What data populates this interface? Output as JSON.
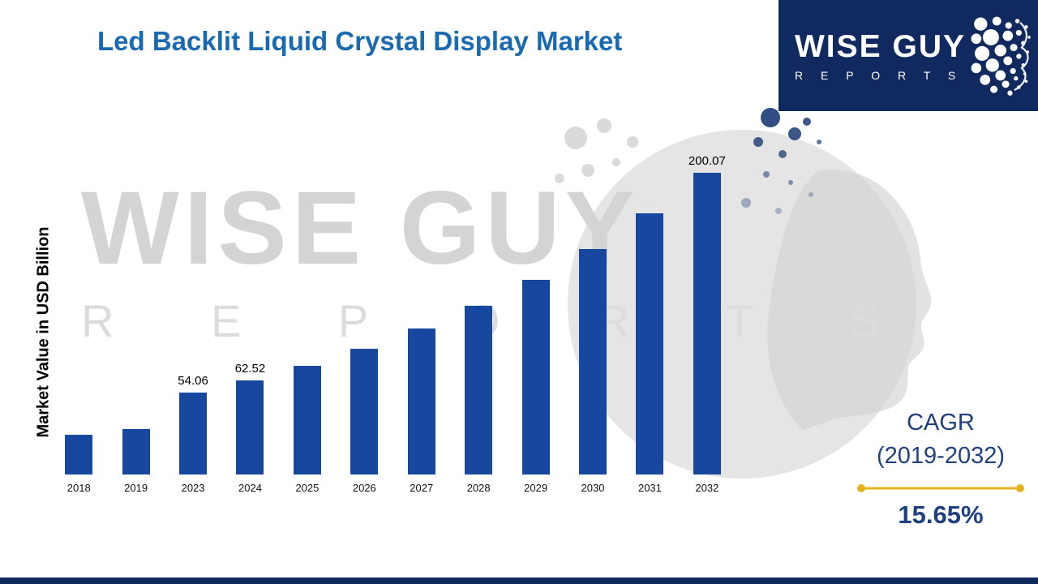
{
  "header": {
    "title": "Led Backlit Liquid Crystal Display Market"
  },
  "logo": {
    "line1": "WISE GUY",
    "line2": "R E P O R T S"
  },
  "watermark": {
    "line1": "WISE GUY",
    "line2": "R E P O R T S"
  },
  "chart_data": {
    "type": "bar",
    "title": "Led Backlit Liquid Crystal Display Market",
    "ylabel": "Market Value in USD Billion",
    "xlabel": "",
    "categories": [
      "2018",
      "2019",
      "2023",
      "2024",
      "2025",
      "2026",
      "2027",
      "2028",
      "2029",
      "2030",
      "2031",
      "2032"
    ],
    "values": [
      26.1,
      30.2,
      54.06,
      62.52,
      72.3,
      83.6,
      96.7,
      111.8,
      129.3,
      149.6,
      173.0,
      200.07
    ],
    "value_labels": {
      "2023": "54.06",
      "2024": "62.52",
      "2032": "200.07"
    },
    "ylim": [
      0,
      210
    ],
    "grid": false,
    "legend": false,
    "bar_color": "#17479e"
  },
  "cagr": {
    "label": "CAGR",
    "range": "(2019-2032)",
    "value": "15.65%"
  },
  "colors": {
    "title_blue": "#1a6ab2",
    "bar_blue": "#17479e",
    "navy": "#10295e",
    "gold": "#e3b41e",
    "watermark_gray": "#d6d6d6"
  }
}
